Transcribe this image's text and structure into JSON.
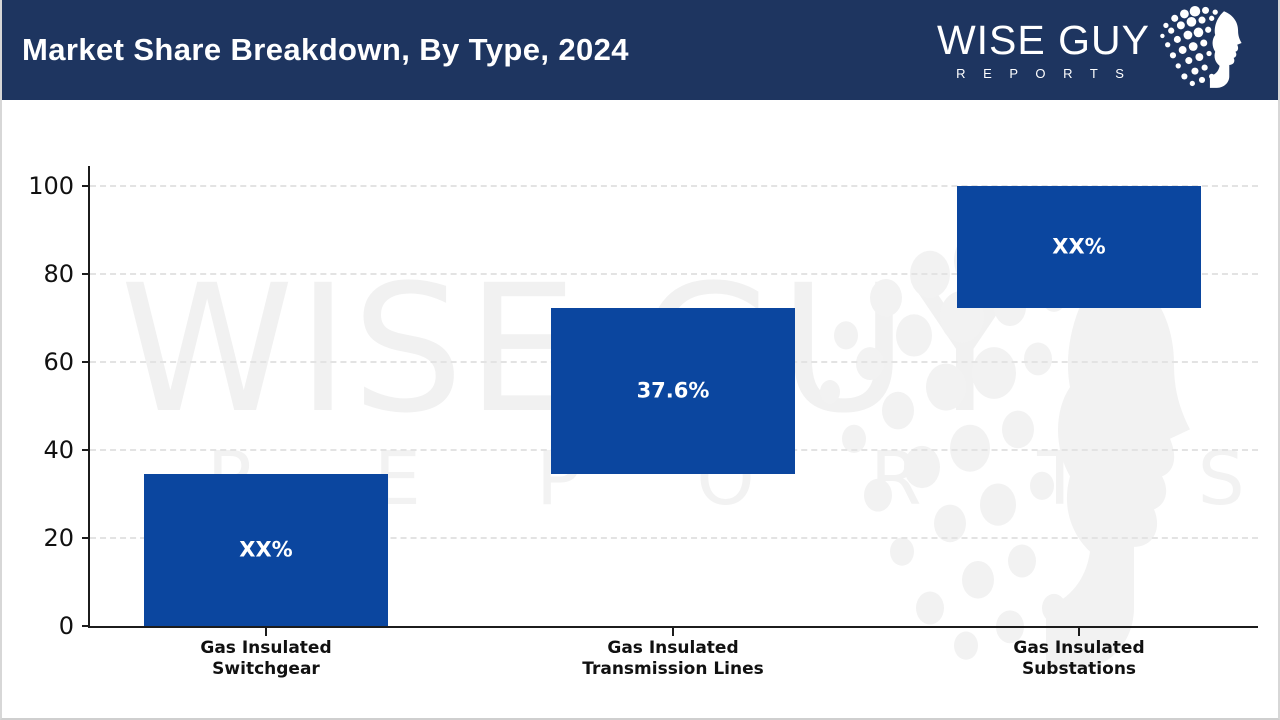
{
  "header": {
    "title": "Market Share Breakdown, By Type, 2024",
    "logo": {
      "line1": "WISE GUY",
      "line2": "R E P O R T S"
    }
  },
  "watermark": {
    "line1": "WISE GUY",
    "line2": "R E P O R T S"
  },
  "colors": {
    "header_bg": "#1e3560",
    "bar": "#0b469f",
    "grid": "#e3e3e3",
    "axis": "#1c1c1c",
    "watermark": "#f1f1f1",
    "title_text": "#ffffff",
    "bar_label_text": "#ffffff"
  },
  "chart_data": {
    "type": "bar",
    "subtype": "waterfall",
    "title": "Market Share Breakdown, By Type, 2024",
    "categories": [
      {
        "line1": "Gas Insulated",
        "line2": "Switchgear"
      },
      {
        "line1": "Gas Insulated",
        "line2": "Transmission Lines"
      },
      {
        "line1": "Gas Insulated",
        "line2": "Substations"
      }
    ],
    "segments": [
      {
        "name": "Gas Insulated Switchgear",
        "start": 0,
        "end": 34.6,
        "height": 34.6,
        "value_label": "XX%"
      },
      {
        "name": "Gas Insulated Transmission Lines",
        "start": 34.6,
        "end": 72.2,
        "height": 37.6,
        "value_label": "37.6%"
      },
      {
        "name": "Gas Insulated Substations",
        "start": 72.2,
        "end": 100,
        "height": 27.8,
        "value_label": "XX%"
      }
    ],
    "yticks": [
      0,
      20,
      40,
      60,
      80,
      100
    ],
    "ylim": [
      0,
      104.5
    ],
    "xlabel": "",
    "ylabel": "",
    "grid": "horizontal-dashed",
    "legend": "none",
    "bar_color": "#0b469f"
  }
}
